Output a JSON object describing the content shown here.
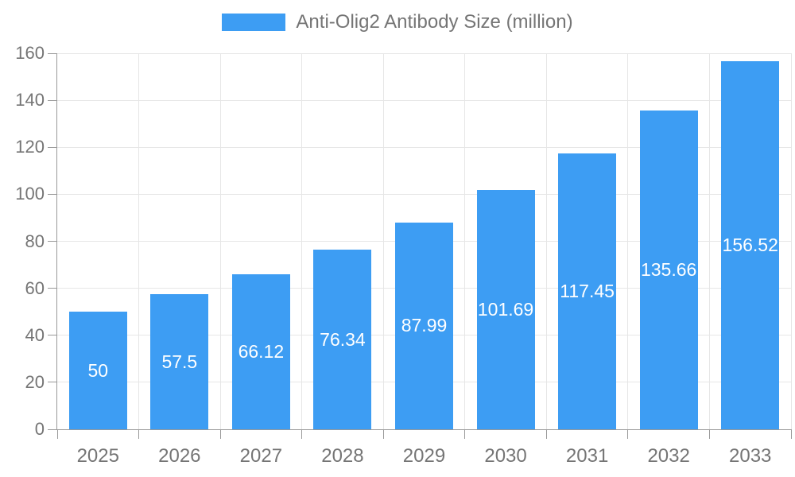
{
  "legend": {
    "label": "Anti-Olig2 Antibody Size (million)"
  },
  "chart_data": {
    "type": "bar",
    "title": "Anti-Olig2 Antibody Size (million)",
    "series_name": "Anti-Olig2 Antibody Size (million)",
    "categories": [
      "2025",
      "2026",
      "2027",
      "2028",
      "2029",
      "2030",
      "2031",
      "2032",
      "2033"
    ],
    "values": [
      50,
      57.5,
      66.12,
      76.34,
      87.99,
      101.69,
      117.45,
      135.66,
      156.52
    ],
    "value_labels": [
      "50",
      "57.5",
      "66.12",
      "76.34",
      "87.99",
      "101.69",
      "117.45",
      "135.66",
      "156.52"
    ],
    "xlabel": "",
    "ylabel": "",
    "ylim": [
      0,
      160
    ],
    "yticks": [
      0,
      20,
      40,
      60,
      80,
      100,
      120,
      140,
      160
    ],
    "grid": true,
    "legend_position": "top-center",
    "value_label_position": "inside-center",
    "colors": {
      "bar": "#3d9df3",
      "axis_line": "#999999",
      "grid_line": "#e6e6e6",
      "axis_text": "#757575",
      "value_text": "#ffffff",
      "background": "#ffffff"
    }
  }
}
